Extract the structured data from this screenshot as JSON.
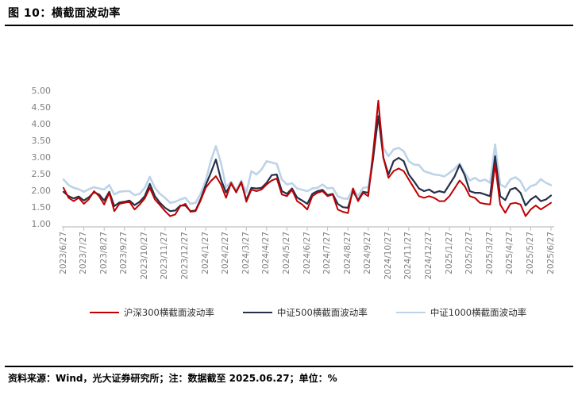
{
  "title": "图 10：横截面波动率",
  "footer": "资料来源：Wind，光大证券研究所；注：数据截至 2025.06.27；单位：%",
  "chart_data": {
    "type": "line",
    "title": "横截面波动率",
    "unit": "%",
    "ylim": [
      1.0,
      5.0
    ],
    "ytick_step": 0.5,
    "grid": false,
    "legend_position": "bottom",
    "axis_color": "#bfbfbf",
    "label_color": "#7f7f7f",
    "yticks": [
      "5.00",
      "4.50",
      "4.00",
      "3.50",
      "3.00",
      "2.50",
      "2.00",
      "1.50",
      "1.00"
    ],
    "x_tick_labels": [
      "2023/6/27",
      "2023/7/27",
      "2023/8/27",
      "2023/9/27",
      "2023/10/27",
      "2023/11/27",
      "2023/12/27",
      "2024/1/27",
      "2024/2/27",
      "2024/3/27",
      "2024/4/27",
      "2024/5/27",
      "2024/6/27",
      "2024/7/27",
      "2024/8/27",
      "2024/9/27",
      "2024/10/27",
      "2024/11/27",
      "2024/12/27",
      "2025/1/27",
      "2025/2/27",
      "2025/3/27",
      "2025/4/27",
      "2025/5/27",
      "2025/6/27"
    ],
    "points_per_tick": 4,
    "series": [
      {
        "name": "沪深300横截面波动率",
        "color": "#C00000",
        "width": 2,
        "values": [
          2.1,
          1.8,
          1.7,
          1.8,
          1.62,
          1.76,
          2.0,
          1.85,
          1.6,
          1.95,
          1.4,
          1.62,
          1.65,
          1.68,
          1.45,
          1.6,
          1.78,
          2.1,
          1.75,
          1.58,
          1.4,
          1.25,
          1.3,
          1.55,
          1.62,
          1.38,
          1.4,
          1.72,
          2.1,
          2.3,
          2.45,
          2.2,
          1.8,
          2.25,
          1.96,
          2.28,
          1.68,
          2.05,
          2.0,
          2.05,
          2.2,
          2.32,
          2.38,
          1.9,
          1.85,
          2.04,
          1.7,
          1.6,
          1.45,
          1.85,
          1.95,
          2.0,
          1.85,
          1.9,
          1.45,
          1.38,
          1.34,
          2.08,
          1.7,
          1.95,
          1.85,
          3.2,
          4.72,
          3.0,
          2.4,
          2.6,
          2.68,
          2.6,
          2.35,
          2.1,
          1.85,
          1.8,
          1.85,
          1.8,
          1.7,
          1.7,
          1.85,
          2.08,
          2.32,
          2.15,
          1.85,
          1.8,
          1.65,
          1.62,
          1.6,
          2.8,
          1.6,
          1.35,
          1.62,
          1.65,
          1.6,
          1.25,
          1.45,
          1.57,
          1.45,
          1.55,
          1.65
        ]
      },
      {
        "name": "中证500横截面波动率",
        "color": "#24304A",
        "width": 2.2,
        "values": [
          1.98,
          1.85,
          1.78,
          1.84,
          1.72,
          1.82,
          1.97,
          1.9,
          1.72,
          1.98,
          1.55,
          1.66,
          1.68,
          1.72,
          1.58,
          1.68,
          1.85,
          2.22,
          1.85,
          1.65,
          1.5,
          1.4,
          1.42,
          1.57,
          1.57,
          1.4,
          1.42,
          1.76,
          2.18,
          2.55,
          2.95,
          2.35,
          1.96,
          2.22,
          1.98,
          2.26,
          1.73,
          2.1,
          2.08,
          2.1,
          2.25,
          2.48,
          2.5,
          2.0,
          1.92,
          2.08,
          1.81,
          1.72,
          1.62,
          1.92,
          2.0,
          2.04,
          1.88,
          1.92,
          1.62,
          1.52,
          1.5,
          2.0,
          1.73,
          1.98,
          1.95,
          3.0,
          4.25,
          3.0,
          2.5,
          2.9,
          3.0,
          2.9,
          2.5,
          2.3,
          2.08,
          2.0,
          2.05,
          1.95,
          2.0,
          1.96,
          2.2,
          2.44,
          2.79,
          2.48,
          2.0,
          1.95,
          1.95,
          1.9,
          1.85,
          3.05,
          1.85,
          1.73,
          2.05,
          2.1,
          1.95,
          1.57,
          1.75,
          1.85,
          1.7,
          1.75,
          1.87
        ]
      },
      {
        "name": "中证1000横截面波动率",
        "color": "#BDD3E8",
        "width": 2.6,
        "values": [
          2.35,
          2.18,
          2.1,
          2.06,
          1.98,
          2.06,
          2.12,
          2.08,
          2.05,
          2.18,
          1.9,
          1.98,
          2.0,
          2.0,
          1.88,
          1.92,
          2.1,
          2.43,
          2.1,
          1.92,
          1.8,
          1.65,
          1.68,
          1.75,
          1.8,
          1.62,
          1.65,
          1.92,
          2.32,
          2.9,
          3.35,
          2.85,
          2.12,
          2.28,
          2.02,
          2.32,
          1.96,
          2.6,
          2.5,
          2.65,
          2.9,
          2.86,
          2.82,
          2.35,
          2.2,
          2.24,
          2.08,
          2.04,
          2.0,
          2.08,
          2.1,
          2.2,
          2.08,
          2.1,
          1.85,
          1.78,
          1.77,
          2.08,
          1.85,
          2.1,
          2.12,
          3.1,
          4.38,
          3.3,
          3.05,
          3.25,
          3.3,
          3.2,
          2.9,
          2.8,
          2.78,
          2.6,
          2.55,
          2.5,
          2.48,
          2.44,
          2.55,
          2.67,
          2.83,
          2.55,
          2.32,
          2.4,
          2.3,
          2.35,
          2.25,
          3.4,
          2.2,
          2.12,
          2.35,
          2.42,
          2.3,
          2.0,
          2.15,
          2.2,
          2.36,
          2.25,
          2.18
        ]
      }
    ]
  }
}
